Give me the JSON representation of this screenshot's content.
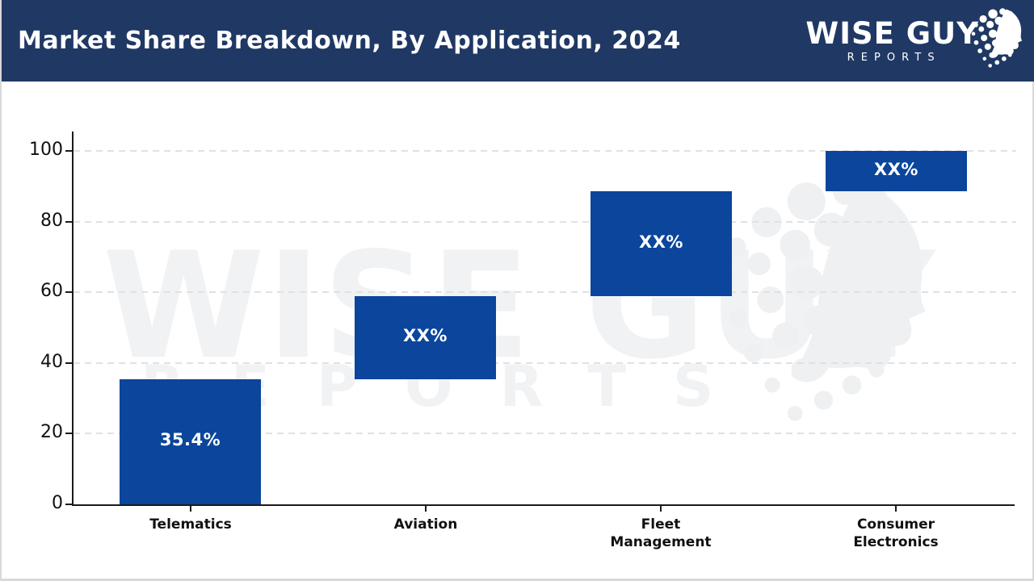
{
  "header": {
    "title": "Market Share Breakdown, By Application, 2024",
    "logo": {
      "name": "WISE GUY",
      "tagline": "REPORTS"
    }
  },
  "watermark": {
    "text": "WISE GUY",
    "subtext": "REPORTS"
  },
  "colors": {
    "header_bg": "#203864",
    "bar": "#0b459c",
    "bar_label": "#ffffff",
    "axis": "#1a1a1a",
    "grid": "#e1e1e1",
    "watermark": "#f1f2f4"
  },
  "chart_data": {
    "type": "bar",
    "subtype": "waterfall",
    "title": "Market Share Breakdown, By Application, 2024",
    "categories": [
      "Telematics",
      "Aviation",
      "Fleet Management",
      "Consumer Electronics"
    ],
    "segments": [
      {
        "category": "Telematics",
        "start": 0,
        "end": 35.4,
        "label": "35.4%"
      },
      {
        "category": "Aviation",
        "start": 35.4,
        "end": 59,
        "label": "XX%"
      },
      {
        "category": "Fleet Management",
        "start": 59,
        "end": 88.6,
        "label": "XX%"
      },
      {
        "category": "Consumer Electronics",
        "start": 88.6,
        "end": 100,
        "label": "XX%"
      }
    ],
    "yticks": [
      0,
      20,
      40,
      60,
      80,
      100
    ],
    "ylim": [
      0,
      105
    ],
    "xlabel": "",
    "ylabel": "",
    "grid": "horizontal-dashed",
    "legend": "none",
    "bar_color": "#0b459c",
    "label_color": "#ffffff"
  }
}
